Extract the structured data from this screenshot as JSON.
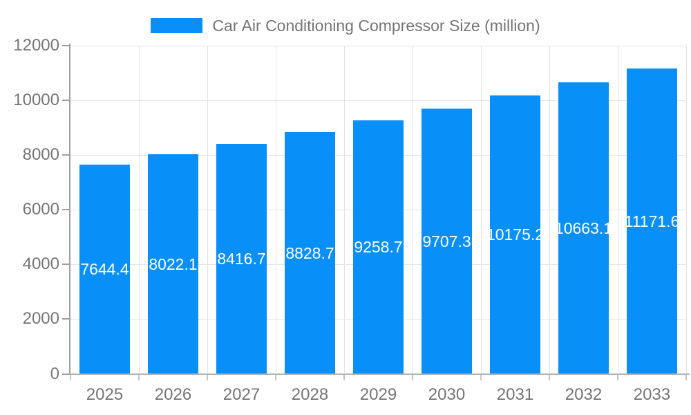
{
  "chart_data": {
    "type": "bar",
    "title": "Car Air Conditioning Compressor Size (million)",
    "series_name": "Car Air Conditioning Compressor Size (million)",
    "categories": [
      "2025",
      "2026",
      "2027",
      "2028",
      "2029",
      "2030",
      "2031",
      "2032",
      "2033"
    ],
    "values": [
      7644.4,
      8022.1,
      8416.7,
      8828.7,
      9258.7,
      9707.3,
      10175.2,
      10663.1,
      11171.6
    ],
    "bar_labels": [
      "7644.4",
      "8022.1",
      "8416.7",
      "8828.7",
      "9258.7",
      "9707.3",
      "10175.2",
      "10663.1",
      "11171.6"
    ],
    "xlabel": "",
    "ylabel": "",
    "ylim": [
      0,
      12000
    ],
    "yticks": [
      0,
      2000,
      4000,
      6000,
      8000,
      10000,
      12000
    ],
    "grid": true,
    "legend_position": "top",
    "bar_label_position": "inside-middle",
    "colors": {
      "bar": "#0990f8",
      "bar_label_text": "#ffffff",
      "axis_text": "#757575",
      "grid_line": "#e3e3e3",
      "axis_line": "#9e9e9e",
      "background": "#ffffff"
    }
  }
}
